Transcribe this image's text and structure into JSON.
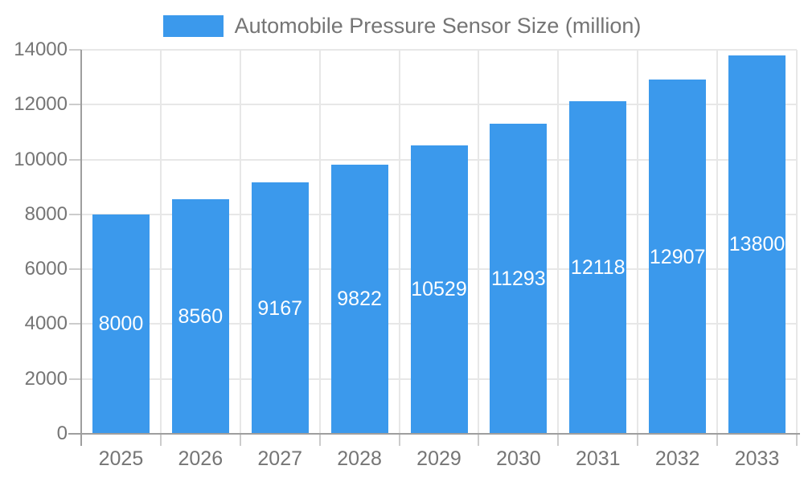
{
  "legend": {
    "label": "Automobile Pressure Sensor Size (million)"
  },
  "colors": {
    "bar": "#3b99ec",
    "grid": "#e7e7e7",
    "axis": "#9e9e9e",
    "tick": "#cccccc",
    "tick_label": "#757575",
    "legend_label": "#757575",
    "data_label": "#ffffff",
    "background": "#ffffff"
  },
  "chart_data": {
    "type": "bar",
    "title": "Automobile Pressure Sensor Size (million)",
    "categories": [
      "2025",
      "2026",
      "2027",
      "2028",
      "2029",
      "2030",
      "2031",
      "2032",
      "2033"
    ],
    "series": [
      {
        "name": "Automobile Pressure Sensor Size (million)",
        "values": [
          8000,
          8560,
          9167,
          9822,
          10529,
          11293,
          12118,
          12907,
          13800
        ]
      }
    ],
    "data_labels": [
      "8000",
      "8560",
      "9167",
      "9822",
      "10529",
      "11293",
      "12118",
      "12907",
      "13800"
    ],
    "data_labels_position": "inside-center",
    "xlabel": "",
    "ylabel": "",
    "ylim": [
      0,
      14000
    ],
    "ytick_interval": 2000,
    "yticks": [
      "0",
      "2000",
      "4000",
      "6000",
      "8000",
      "10000",
      "12000",
      "14000"
    ],
    "grid": true,
    "legend_position": "top-center"
  }
}
